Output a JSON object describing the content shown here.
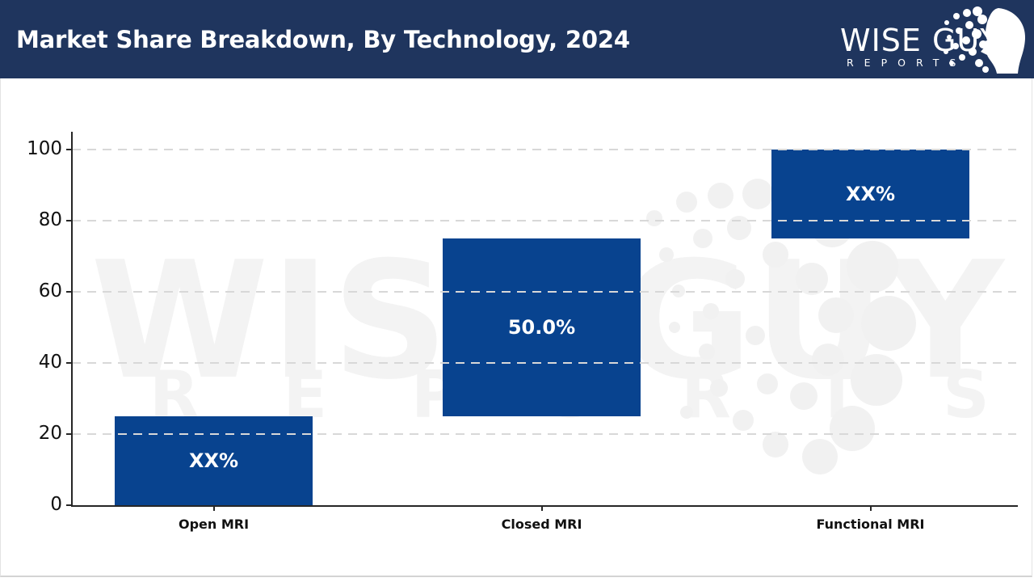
{
  "header": {
    "title": "Market Share Breakdown, By Technology, 2024",
    "bg_color": "#1f355e"
  },
  "logo": {
    "line1": "WISE GUY",
    "line2": "REPORTS"
  },
  "watermark": {
    "line1": "WISE GUY",
    "line2": "REPORTS"
  },
  "chart_data": {
    "type": "bar",
    "subtype": "floating-segment-bars",
    "title": "Market Share Breakdown, By Technology, 2024",
    "categories": [
      "Open MRI",
      "Closed MRI",
      "Functional MRI"
    ],
    "series": [
      {
        "name": "Market Share (%)",
        "ranges": [
          [
            0,
            25
          ],
          [
            25,
            75
          ],
          [
            75,
            100
          ]
        ],
        "values": [
          25,
          50,
          25
        ],
        "labels": [
          "XX%",
          "50.0%",
          "XX%"
        ]
      }
    ],
    "xlabel": "",
    "ylabel": "",
    "yticks": [
      0,
      20,
      40,
      60,
      80,
      100
    ],
    "ylim": [
      0,
      104.5
    ],
    "grid": "horizontal-dashed",
    "legend": "none",
    "bar_color": "#08438f",
    "bar_label_color": "#ffffff",
    "axis_color": "#262626",
    "gridline_color": "#d8d8d8"
  }
}
